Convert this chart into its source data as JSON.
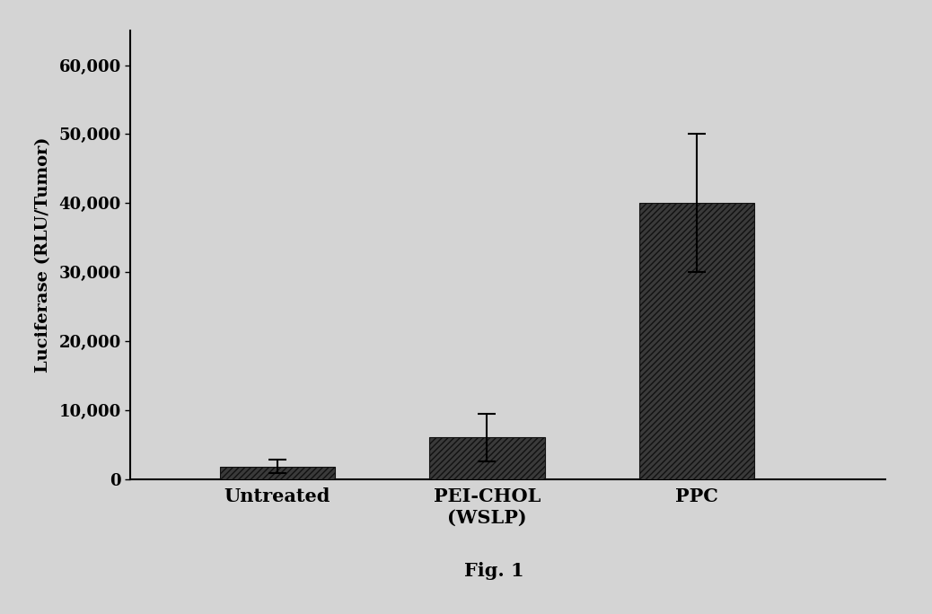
{
  "categories": [
    "Untreated",
    "PEI-CHOL\n(WSLP)",
    "PPC"
  ],
  "values": [
    1800,
    6000,
    40000
  ],
  "errors": [
    1000,
    3500,
    10000
  ],
  "bar_color": "#3a3a3a",
  "background_color": "#d4d4d4",
  "ylabel": "Luciferase (RLU/Tumor)",
  "caption": "Fig. 1",
  "ylim": [
    0,
    65000
  ],
  "yticks": [
    0,
    10000,
    20000,
    30000,
    40000,
    50000,
    60000
  ],
  "bar_width": 0.55,
  "label_fontsize": 15,
  "tick_fontsize": 13,
  "ylabel_fontsize": 14,
  "caption_fontsize": 15,
  "x_positions": [
    1,
    2,
    3
  ],
  "xlim": [
    0.3,
    3.9
  ]
}
